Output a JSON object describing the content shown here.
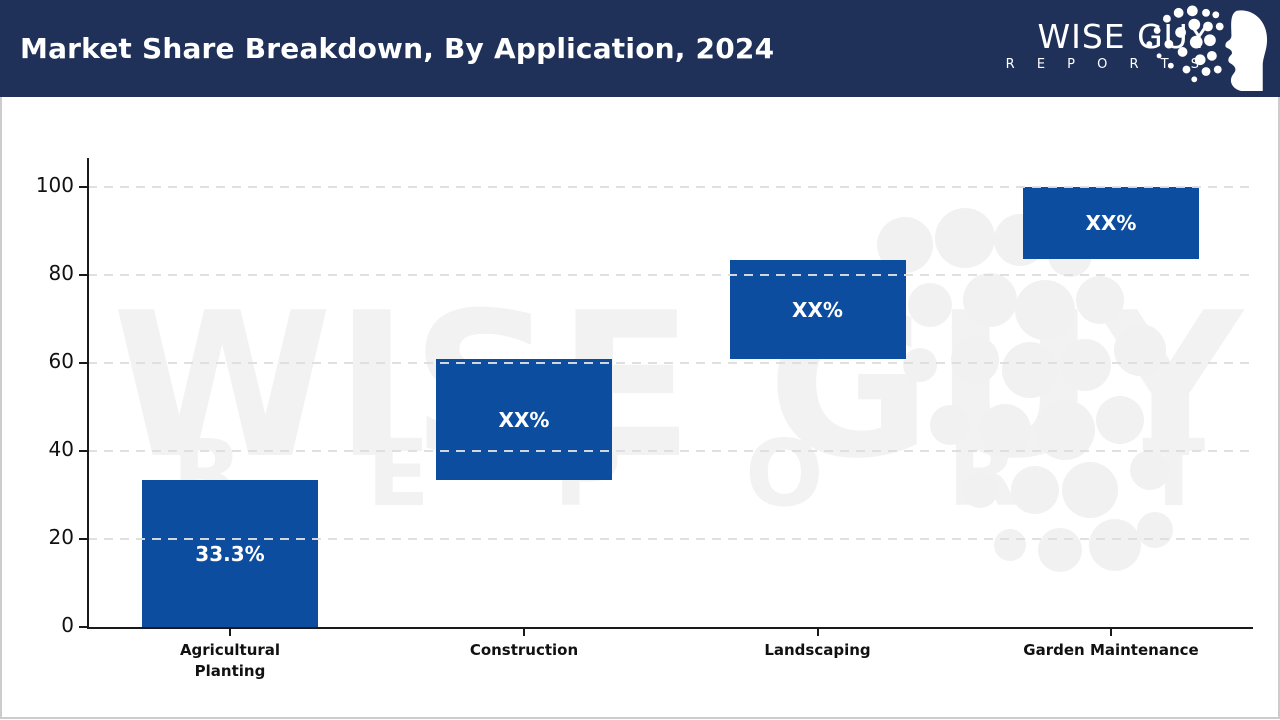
{
  "header": {
    "title": "Market Share Breakdown, By Application, 2024",
    "logo": {
      "brand_line1": "WISE GUY",
      "brand_line2": "R E P O R T S"
    }
  },
  "watermark": {
    "line1": "WISE GUY",
    "line2": "R E P O R T S"
  },
  "colors": {
    "header_bg": "#1f3059",
    "bar": "#0d4da0",
    "bar_label": "#ffffff",
    "axis": "#1a1a1a",
    "grid": "#dcdcdc",
    "watermark": "#f2f2f2",
    "edge_border": "#cccccc"
  },
  "chart_data": {
    "type": "bar",
    "subtype": "floating-segment waterfall-style column chart",
    "title": "Market Share Breakdown, By Application, 2024",
    "categories": [
      "Agricultural Planting",
      "Construction",
      "Landscaping",
      "Garden Maintenance"
    ],
    "categories_display": [
      "Agricultural\nPlanting",
      "Construction",
      "Landscaping",
      "Garden Maintenance"
    ],
    "bars": [
      {
        "category": "Agricultural Planting",
        "start": 0,
        "end": 33.3,
        "label": "33.3%"
      },
      {
        "category": "Construction",
        "start": 33.3,
        "end": 61,
        "label": "XX%"
      },
      {
        "category": "Landscaping",
        "start": 61,
        "end": 83.3,
        "label": "XX%"
      },
      {
        "category": "Garden Maintenance",
        "start": 83.7,
        "end": 100,
        "label": "XX%"
      }
    ],
    "ylim": [
      0,
      100
    ],
    "yticks": [
      0,
      20,
      40,
      60,
      80,
      100
    ],
    "xlabel": "",
    "ylabel": "",
    "grid": "horizontal dashed gridlines drawn over bars",
    "legend": "none"
  }
}
